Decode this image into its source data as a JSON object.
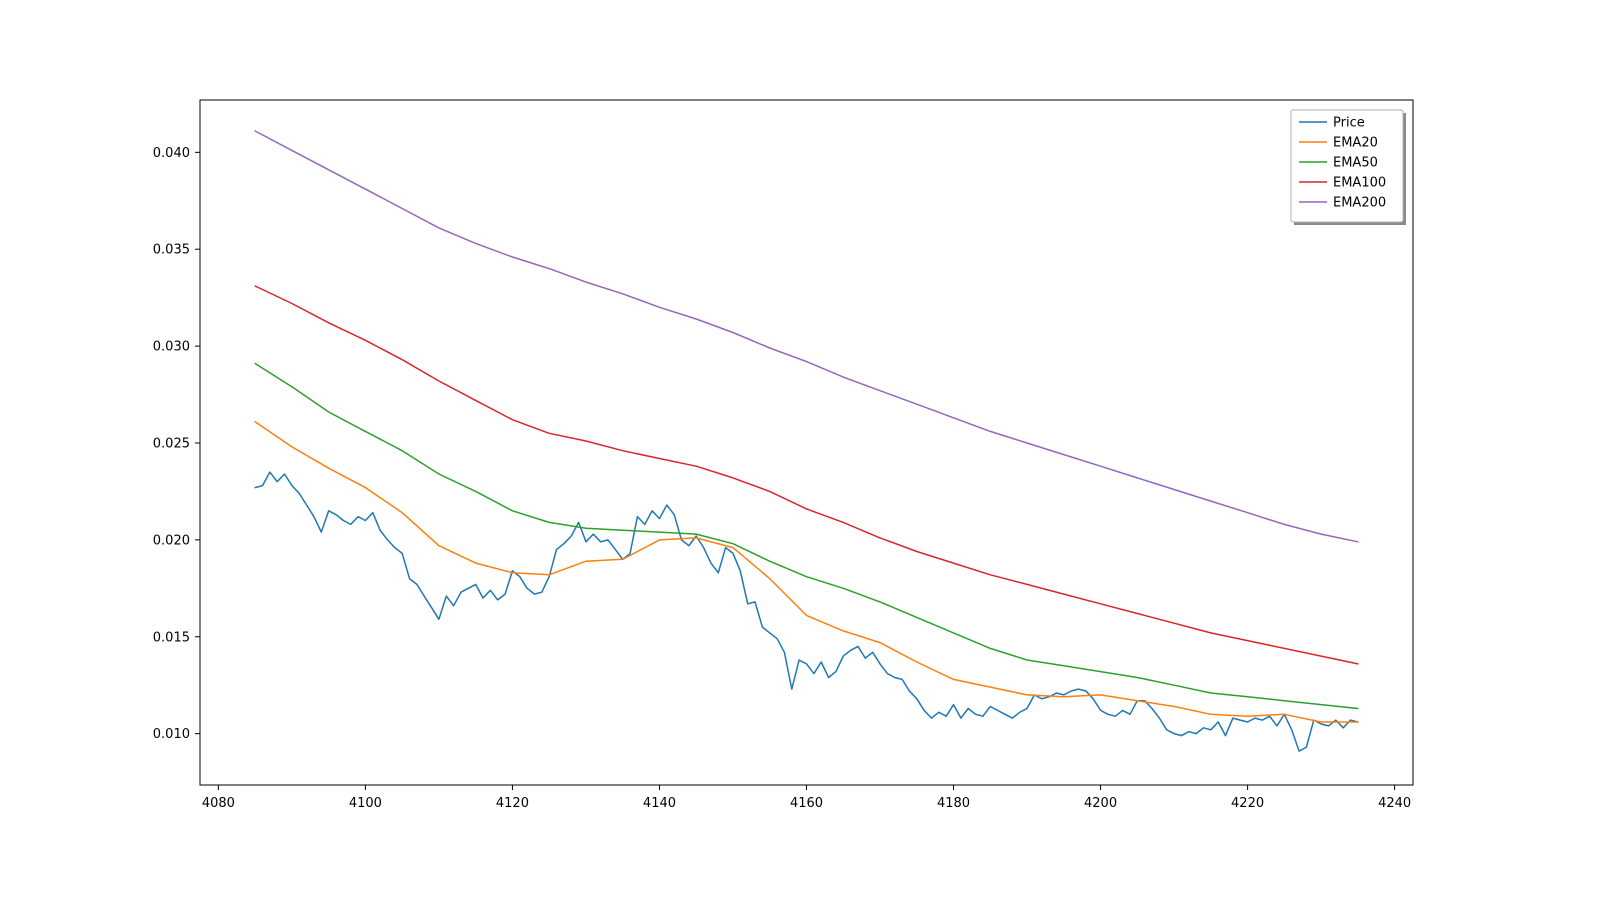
{
  "figure": {
    "background": "#ffffff",
    "frame_color": "#000000",
    "text_color": "#000000"
  },
  "chart_data": {
    "type": "line",
    "title": "",
    "xlabel": "",
    "ylabel": "",
    "grid": false,
    "xlim": [
      4077.5,
      4242.5
    ],
    "ylim": [
      0.00735,
      0.0427
    ],
    "xticks": [
      4080,
      4100,
      4120,
      4140,
      4160,
      4180,
      4200,
      4220,
      4240
    ],
    "yticks": [
      0.01,
      0.015,
      0.02,
      0.025,
      0.03,
      0.035,
      0.04
    ],
    "legend": {
      "position": "upper right",
      "entries": [
        "Price",
        "EMA20",
        "EMA50",
        "EMA100",
        "EMA200"
      ]
    },
    "series": [
      {
        "name": "Price",
        "color": "#1f77b4",
        "x_start": 4085,
        "x_step": 1,
        "y": [
          0.0227,
          0.0228,
          0.0235,
          0.023,
          0.0234,
          0.0228,
          0.0224,
          0.0218,
          0.0212,
          0.0204,
          0.0215,
          0.0213,
          0.021,
          0.0208,
          0.0212,
          0.021,
          0.0214,
          0.0205,
          0.02,
          0.0196,
          0.0193,
          0.018,
          0.0177,
          0.0171,
          0.0165,
          0.0159,
          0.0171,
          0.0166,
          0.0173,
          0.0175,
          0.0177,
          0.017,
          0.0174,
          0.0169,
          0.0172,
          0.0184,
          0.0181,
          0.0175,
          0.0172,
          0.0173,
          0.0181,
          0.0195,
          0.0198,
          0.0202,
          0.0209,
          0.0199,
          0.0203,
          0.0199,
          0.02,
          0.0195,
          0.019,
          0.0193,
          0.0212,
          0.0208,
          0.0215,
          0.0211,
          0.0218,
          0.0213,
          0.02,
          0.0197,
          0.0202,
          0.0196,
          0.0188,
          0.0183,
          0.0196,
          0.0193,
          0.0184,
          0.0167,
          0.0168,
          0.0155,
          0.0152,
          0.0149,
          0.0142,
          0.0123,
          0.0138,
          0.0136,
          0.0131,
          0.0137,
          0.0129,
          0.0132,
          0.014,
          0.0143,
          0.0145,
          0.0139,
          0.0142,
          0.0136,
          0.0131,
          0.0129,
          0.0128,
          0.0122,
          0.0118,
          0.0112,
          0.0108,
          0.0111,
          0.0109,
          0.0115,
          0.0108,
          0.0113,
          0.011,
          0.0109,
          0.0114,
          0.0112,
          0.011,
          0.0108,
          0.0111,
          0.0113,
          0.012,
          0.0118,
          0.0119,
          0.0121,
          0.012,
          0.0122,
          0.0123,
          0.0122,
          0.0118,
          0.0112,
          0.011,
          0.0109,
          0.0112,
          0.011,
          0.0117,
          0.0117,
          0.0113,
          0.0108,
          0.0102,
          0.01,
          0.0099,
          0.0101,
          0.01,
          0.0103,
          0.0102,
          0.0106,
          0.0099,
          0.0108,
          0.0107,
          0.0106,
          0.0108,
          0.0107,
          0.0109,
          0.0104,
          0.011,
          0.0102,
          0.0091,
          0.0093,
          0.0107,
          0.0105,
          0.0104,
          0.0107,
          0.0103,
          0.0107,
          0.0106
        ]
      },
      {
        "name": "EMA20",
        "color": "#ff7f0e",
        "x_start": 4085,
        "x_step": 5,
        "y": [
          0.0261,
          0.0248,
          0.0237,
          0.0227,
          0.0214,
          0.0197,
          0.0188,
          0.0183,
          0.0182,
          0.0189,
          0.019,
          0.02,
          0.0201,
          0.0196,
          0.018,
          0.0161,
          0.0153,
          0.0147,
          0.0137,
          0.0128,
          0.0124,
          0.012,
          0.0119,
          0.012,
          0.0117,
          0.0114,
          0.011,
          0.0109,
          0.011,
          0.0106,
          0.0106
        ]
      },
      {
        "name": "EMA50",
        "color": "#2ca02c",
        "x_start": 4085,
        "x_step": 5,
        "y": [
          0.0291,
          0.0279,
          0.0266,
          0.0256,
          0.0246,
          0.0234,
          0.0225,
          0.0215,
          0.0209,
          0.0206,
          0.0205,
          0.0204,
          0.0203,
          0.0198,
          0.0189,
          0.0181,
          0.0175,
          0.0168,
          0.016,
          0.0152,
          0.0144,
          0.0138,
          0.0135,
          0.0132,
          0.0129,
          0.0125,
          0.0121,
          0.0119,
          0.0117,
          0.0115,
          0.0113
        ]
      },
      {
        "name": "EMA100",
        "color": "#d62728",
        "x_start": 4085,
        "x_step": 5,
        "y": [
          0.0331,
          0.0322,
          0.0312,
          0.0303,
          0.0293,
          0.0282,
          0.0272,
          0.0262,
          0.0255,
          0.0251,
          0.0246,
          0.0242,
          0.0238,
          0.0232,
          0.0225,
          0.0216,
          0.0209,
          0.0201,
          0.0194,
          0.0188,
          0.0182,
          0.0177,
          0.0172,
          0.0167,
          0.0162,
          0.0157,
          0.0152,
          0.0148,
          0.0144,
          0.014,
          0.0136
        ]
      },
      {
        "name": "EMA200",
        "color": "#9467bd",
        "x_start": 4085,
        "x_step": 5,
        "y": [
          0.0411,
          0.0401,
          0.0391,
          0.0381,
          0.0371,
          0.0361,
          0.0353,
          0.0346,
          0.034,
          0.0333,
          0.0327,
          0.032,
          0.0314,
          0.0307,
          0.0299,
          0.0292,
          0.0284,
          0.0277,
          0.027,
          0.0263,
          0.0256,
          0.025,
          0.0244,
          0.0238,
          0.0232,
          0.0226,
          0.022,
          0.0214,
          0.0208,
          0.0203,
          0.0199
        ]
      }
    ]
  }
}
